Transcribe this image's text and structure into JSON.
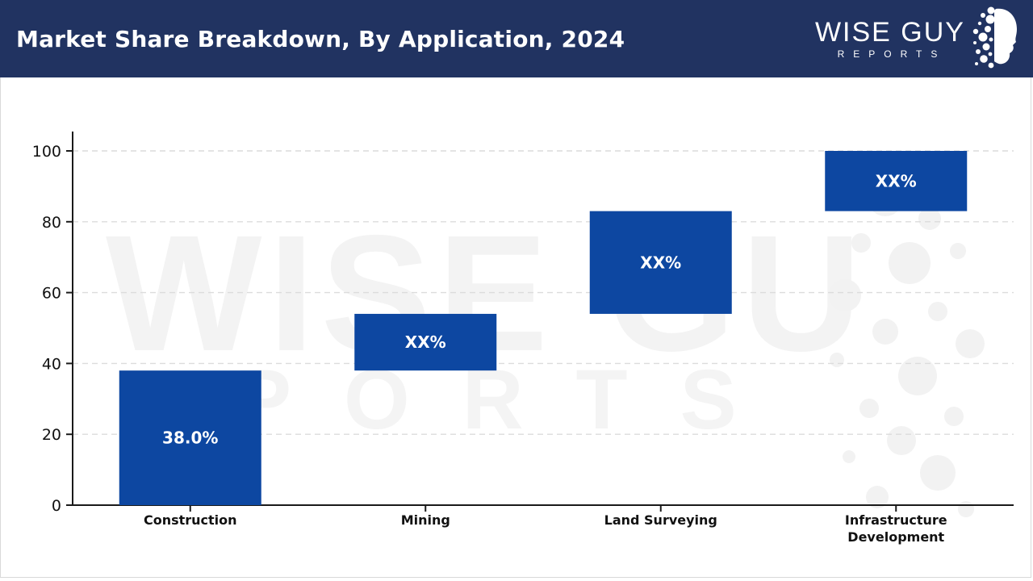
{
  "header": {
    "title": "Market Share Breakdown, By Application, 2024",
    "bg_color": "#213361",
    "logo": {
      "line1": "WISE GUY",
      "line2": "REPORTS"
    }
  },
  "watermark": {
    "line1": "WISE GU",
    "line2": "PORTS"
  },
  "chart_data": {
    "type": "bar",
    "subtype": "waterfall-floating-bars",
    "title": "Market Share Breakdown, By Application, 2024",
    "xlabel": "",
    "ylabel": "",
    "ylim": [
      0,
      100
    ],
    "yticks": [
      0,
      20,
      40,
      60,
      80,
      100
    ],
    "grid": "horizontal-dashed",
    "legend": "none",
    "bar_color": "#0d47a1",
    "bar_label_color": "#ffffff",
    "axis_color": "#1a1a1a",
    "grid_color": "#dcdcdc",
    "categories": [
      "Construction",
      "Mining",
      "Land Surveying",
      "Infrastructure Development"
    ],
    "category_lines": [
      [
        "Construction"
      ],
      [
        "Mining"
      ],
      [
        "Land Surveying"
      ],
      [
        "Infrastructure",
        "Development"
      ]
    ],
    "segments": [
      {
        "category": "Construction",
        "start": 0,
        "end": 38,
        "label": "38.0%"
      },
      {
        "category": "Mining",
        "start": 38,
        "end": 54,
        "label": "XX%"
      },
      {
        "category": "Land Surveying",
        "start": 54,
        "end": 83,
        "label": "XX%"
      },
      {
        "category": "Infrastructure Development",
        "start": 83,
        "end": 100,
        "label": "XX%"
      }
    ]
  }
}
